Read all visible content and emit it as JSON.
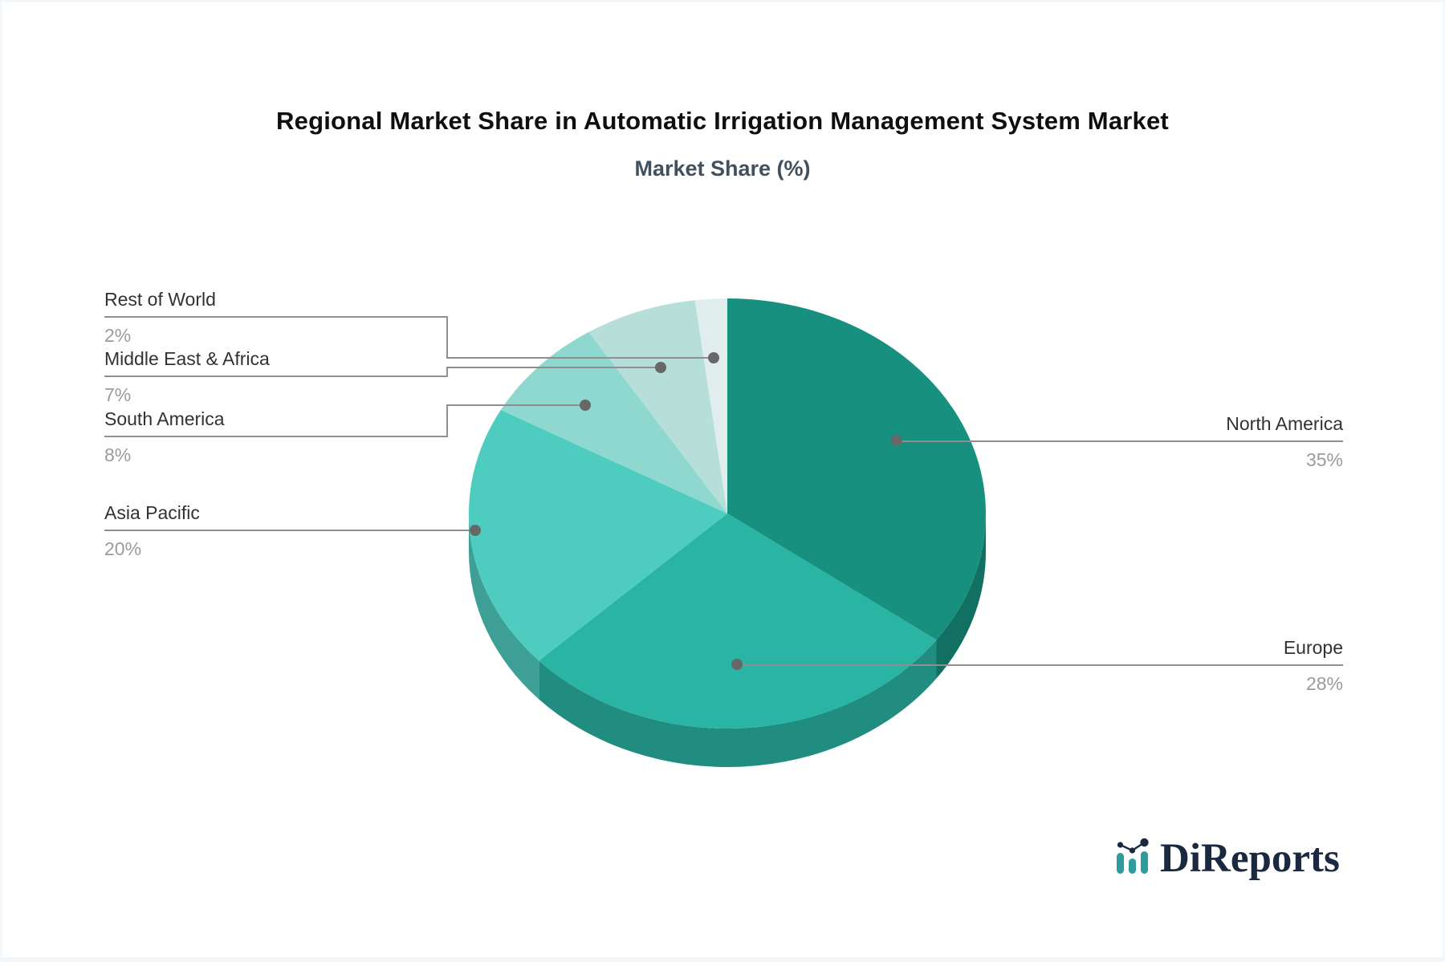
{
  "header": {
    "title": "Regional Market Share in Automatic Irrigation Management System Market",
    "subtitle": "Market Share (%)"
  },
  "chart_data": {
    "type": "pie",
    "title": "Regional Market Share in Automatic Irrigation Management System Market",
    "subtitle": "Market Share (%)",
    "unit": "%",
    "effect": "3d",
    "start_angle_deg": 0,
    "direction": "clockwise",
    "legend_position": "leader-line-labels",
    "categories": [
      "North America",
      "Europe",
      "Asia Pacific",
      "South America",
      "Middle East & Africa",
      "Rest of World"
    ],
    "values": [
      35,
      28,
      20,
      8,
      7,
      2
    ],
    "slices": [
      {
        "label": "North America",
        "value": 35,
        "pct_label": "35%",
        "color": "#17907f"
      },
      {
        "label": "Europe",
        "value": 28,
        "pct_label": "28%",
        "color": "#2ab4a4"
      },
      {
        "label": "Asia Pacific",
        "value": 20,
        "pct_label": "20%",
        "color": "#4fccc0"
      },
      {
        "label": "South America",
        "value": 8,
        "pct_label": "8%",
        "color": "#8fd8cf"
      },
      {
        "label": "Middle East & Africa",
        "value": 7,
        "pct_label": "7%",
        "color": "#b7dfda"
      },
      {
        "label": "Rest of World",
        "value": 2,
        "pct_label": "2%",
        "color": "#dfeeec"
      }
    ],
    "leader_line_color": "#8f8f8f",
    "leader_dot_color": "#676767"
  },
  "logo": {
    "text": "DiReports",
    "icon": "bar-chart-logo-icon",
    "text_color": "#1a2940",
    "accent_color": "#2e9c9c"
  }
}
